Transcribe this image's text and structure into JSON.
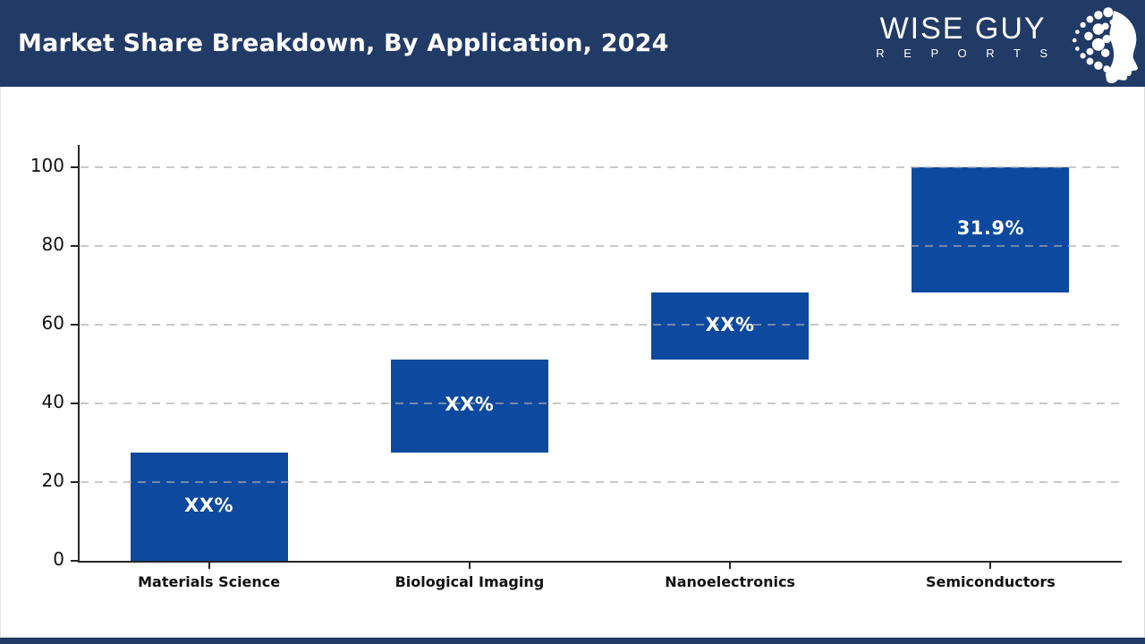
{
  "header": {
    "title": "Market Share Breakdown, By Application, 2024",
    "logo": {
      "line1": "WISE GUY",
      "line2": "R E P O R T S",
      "icon": "dotted-head-icon"
    }
  },
  "chart_data": {
    "type": "waterfall",
    "title": "Market Share Breakdown, By Application, 2024",
    "categories": [
      "Materials Science",
      "Biological Imaging",
      "Nanoelectronics",
      "Semiconductors"
    ],
    "segments": [
      {
        "category": "Materials Science",
        "start": 0,
        "end": 27.5,
        "label": "XX%"
      },
      {
        "category": "Biological Imaging",
        "start": 27.5,
        "end": 51.2,
        "label": "XX%"
      },
      {
        "category": "Nanoelectronics",
        "start": 51.2,
        "end": 68.1,
        "label": "XX%"
      },
      {
        "category": "Semiconductors",
        "start": 68.1,
        "end": 100,
        "label": "31.9%"
      }
    ],
    "yticks": [
      0,
      20,
      40,
      60,
      80,
      100
    ],
    "ylim": [
      0,
      105
    ],
    "xlabel": "",
    "ylabel": "",
    "grid": "horizontal-dashed-over-bars",
    "legend": "none",
    "bar_color": "#0d4a9f",
    "value_label_color": "#ffffff"
  },
  "watermark": {
    "line1": "WISE GUY",
    "line2": "R E P O R T S"
  },
  "colors": {
    "header_bg": "#213a66",
    "footer_bg": "#213a66",
    "bar": "#0d4a9f",
    "axis": "#262626",
    "grid": "#acacac",
    "text": "#111111"
  }
}
